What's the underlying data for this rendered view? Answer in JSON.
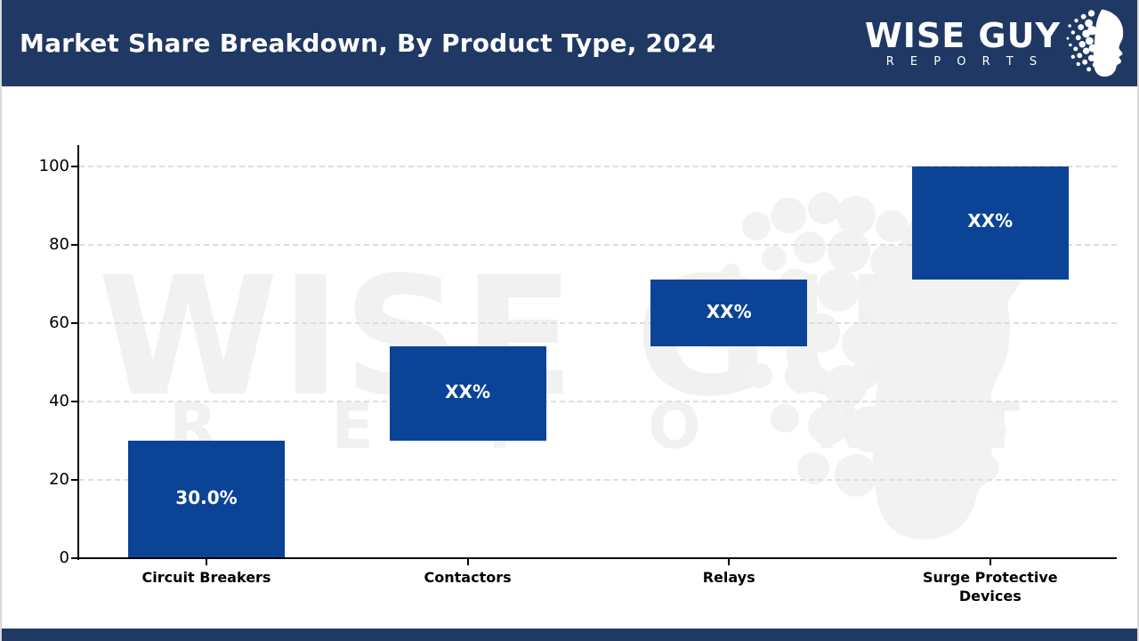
{
  "header": {
    "bg": "#1f3864",
    "title": "Market Share Breakdown, By Product Type, 2024",
    "logo_line1": "WISE GUY",
    "logo_line2": "R E P O R T S"
  },
  "footer": {
    "bg": "#1f3864"
  },
  "watermark": {
    "line1": "WISE GUY",
    "line2": "R E P O R T S"
  },
  "chart_data": {
    "type": "bar",
    "variant": "waterfall",
    "title": "Market Share Breakdown, By Product Type, 2024",
    "categories": [
      "Circuit Breakers",
      "Contactors",
      "Relays",
      "Surge Protective Devices"
    ],
    "segments": [
      {
        "category": "Circuit Breakers",
        "start": 0,
        "end": 30,
        "label": "30.0%"
      },
      {
        "category": "Contactors",
        "start": 30,
        "end": 54,
        "label": "XX%"
      },
      {
        "category": "Relays",
        "start": 54,
        "end": 71,
        "label": "XX%"
      },
      {
        "category": "Surge Protective Devices",
        "start": 71,
        "end": 100,
        "label": "XX%"
      }
    ],
    "xlabel": "",
    "ylabel": "",
    "yticks": [
      0,
      20,
      40,
      60,
      80,
      100
    ],
    "ylim": [
      0,
      105
    ],
    "grid": true,
    "legend": "none",
    "bar_color": "#0b4397",
    "bar_label_color": "#ffffff",
    "gridline_color": "#dedede",
    "axis_color": "#000000"
  }
}
